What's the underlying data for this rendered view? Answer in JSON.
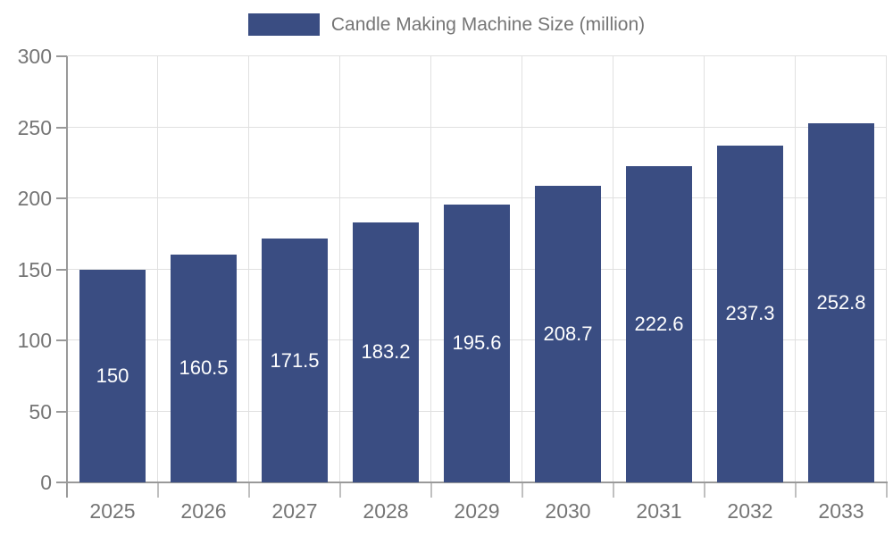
{
  "chart_data": {
    "type": "bar",
    "title": "Candle Making Machine Size (million)",
    "categories": [
      "2025",
      "2026",
      "2027",
      "2028",
      "2029",
      "2030",
      "2031",
      "2032",
      "2033"
    ],
    "values": [
      150,
      160.5,
      171.5,
      183.2,
      195.6,
      208.7,
      222.6,
      237.3,
      252.8
    ],
    "value_labels": [
      "150",
      "160.5",
      "171.5",
      "183.2",
      "195.6",
      "208.7",
      "222.6",
      "237.3",
      "252.8"
    ],
    "xlabel": "",
    "ylabel": "",
    "ylim": [
      0,
      300
    ],
    "yticks": [
      0,
      50,
      100,
      150,
      200,
      250,
      300
    ],
    "grid": true,
    "legend_position": "top",
    "value_label_position": "inside-center"
  },
  "colors": {
    "bar": "#3A4D82",
    "grid": "#E0E0E0",
    "axis": "#999999",
    "x_tick": "#C0C0C0",
    "tick_text": "#757575",
    "legend_text": "#757575",
    "value_label_text": "#FFFFFF",
    "background": "#FFFFFF"
  }
}
